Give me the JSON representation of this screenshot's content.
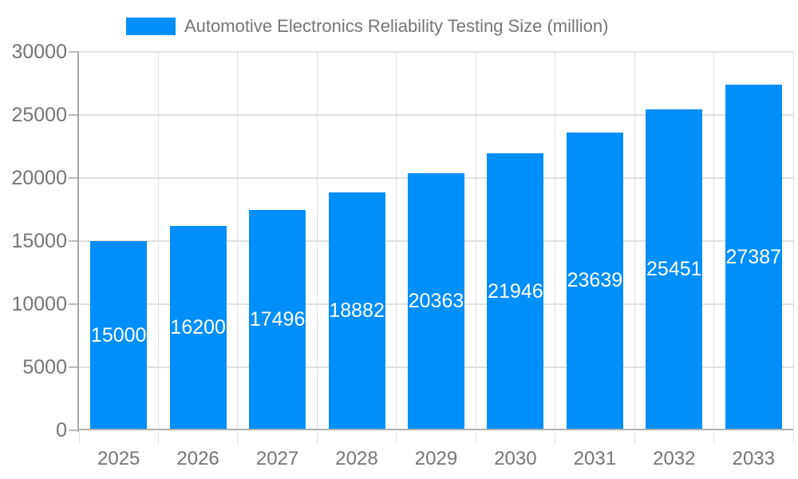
{
  "legend": {
    "label": "Automotive Electronics Reliability Testing Size (million)",
    "swatch_color": "#008FFB"
  },
  "chart_data": {
    "type": "bar",
    "title": "Automotive Electronics Reliability Testing Size (million)",
    "categories": [
      "2025",
      "2026",
      "2027",
      "2028",
      "2029",
      "2030",
      "2031",
      "2032",
      "2033"
    ],
    "series": [
      {
        "name": "Automotive Electronics Reliability Testing Size (million)",
        "values": [
          15000,
          16200,
          17496,
          18882,
          20363,
          21946,
          23639,
          25451,
          27387
        ]
      }
    ],
    "ylim": [
      0,
      30000
    ],
    "yticks": [
      0,
      5000,
      10000,
      15000,
      20000,
      25000,
      30000
    ],
    "grid": true,
    "legend_position": "top",
    "bar_color": "#008FFB",
    "bar_label_color": "#FFFFFF",
    "axis_text_color": "#757575",
    "gridline_color": "#e0e0e0",
    "x_axis_line_color": "#b0b0b0",
    "y_axis_line_color": "#a8a8a8",
    "y_tick_color": "#bdbdbd"
  }
}
